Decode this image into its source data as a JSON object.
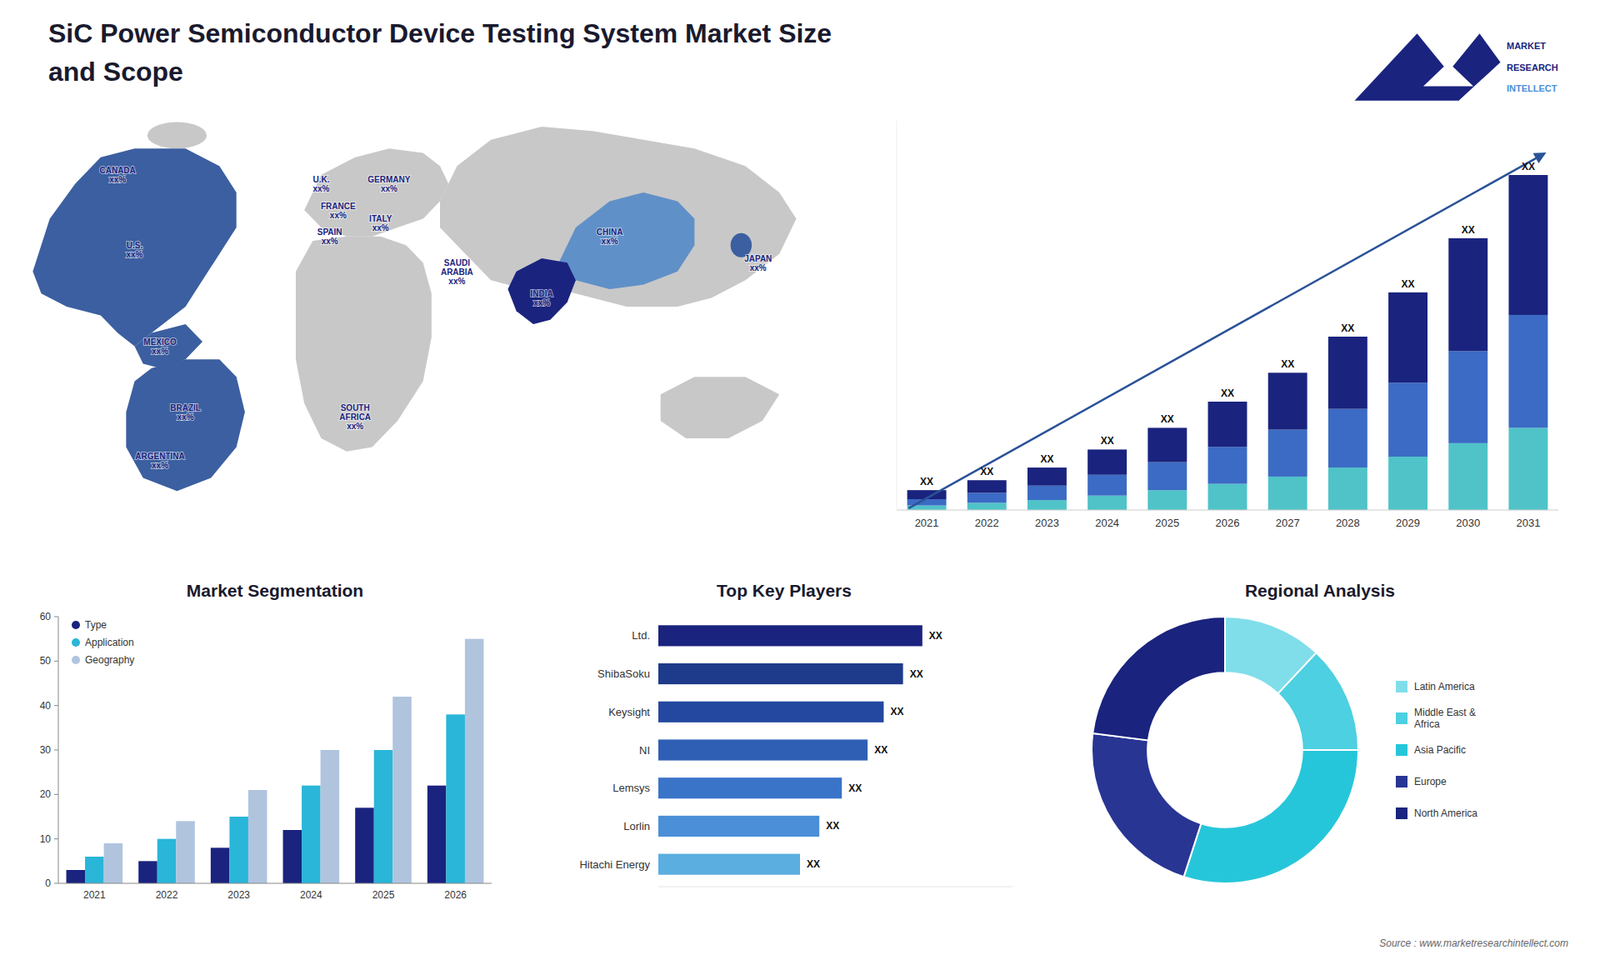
{
  "title": "SiC Power Semiconductor Device Testing System Market Size\nand Scope",
  "source": "Source : www.marketresearchintellect.com",
  "annotations": [
    "MARKET",
    "RESEARCH",
    "INTELLECT"
  ],
  "chart_data": [
    {
      "type": "map",
      "annotations": [
        "CANADA\nxx%",
        "U.S.\nxx%",
        "MEXICO\nxx%",
        "BRAZIL\nxx%",
        "ARGENTINA\nxx%",
        "U.K.\nxx%",
        "FRANCE\nxx%",
        "SPAIN\nxx%",
        "GERMANY\nxx%",
        "ITALY\nxx%",
        "SOUTH\nAFRICA\nxx%",
        "SAUDI\nARABIA\nxx%",
        "CHINA\nxx%",
        "INDIA\nxx%",
        "JAPAN\nxx%"
      ]
    },
    {
      "type": "bar",
      "stacked": true,
      "categories": [
        "2021",
        "2022",
        "2023",
        "2024",
        "2025",
        "2026",
        "2027",
        "2028",
        "2029",
        "2030",
        "2031"
      ],
      "series": [
        {
          "color": "#4fc3c8",
          "values": [
            0.5,
            0.8,
            1.1,
            1.6,
            2.2,
            2.9,
            3.7,
            4.7,
            5.9,
            7.4,
            9.1
          ]
        },
        {
          "color": "#3b6bc4",
          "values": [
            0.7,
            1.1,
            1.6,
            2.3,
            3.1,
            4.1,
            5.2,
            6.5,
            8.2,
            10.2,
            12.5
          ]
        },
        {
          "color": "#1a237e",
          "values": [
            1.0,
            1.4,
            2.0,
            2.8,
            3.8,
            5.0,
            6.3,
            8.0,
            10.0,
            12.5,
            15.5
          ]
        }
      ],
      "ylim": [
        0,
        43.1
      ],
      "tick_labels": "x",
      "grid": false,
      "annotations": [
        "XX",
        "XX",
        "XX",
        "XX",
        "XX",
        "XX",
        "XX",
        "XX",
        "XX",
        "XX",
        "XX"
      ]
    },
    {
      "type": "bar",
      "title": "Market Segmentation",
      "categories": [
        "2021",
        "2022",
        "2023",
        "2024",
        "2025",
        "2026"
      ],
      "series": [
        {
          "name": "Type",
          "color": "#1a237e",
          "values": [
            3,
            5,
            8,
            12,
            17,
            22
          ]
        },
        {
          "name": "Application",
          "color": "#29b6d8",
          "values": [
            6,
            10,
            15,
            22,
            30,
            38
          ]
        },
        {
          "name": "Geography",
          "color": "#b0c4de",
          "values": [
            9,
            14,
            21,
            30,
            42,
            55
          ]
        }
      ],
      "ylim": [
        0,
        60
      ],
      "yticks": [
        0,
        10,
        20,
        30,
        40,
        50,
        60
      ],
      "grid": false,
      "legend": "upper-left"
    },
    {
      "type": "bar",
      "orientation": "horizontal",
      "title": "Top Key Players",
      "categories": [
        "Ltd.",
        "ShibaSoku",
        "Keysight",
        "NI",
        "Lemsys",
        "Lorlin",
        "Hitachi Energy"
      ],
      "values": [
        0.82,
        0.76,
        0.7,
        0.65,
        0.57,
        0.5,
        0.44
      ],
      "colors": [
        "#1a237e",
        "#1e3a8a",
        "#2448a0",
        "#2e5fb5",
        "#3a74c8",
        "#4a8fd8",
        "#5aaee0"
      ],
      "xlim": [
        0,
        1.1
      ],
      "tick_labels": "y",
      "grid": false,
      "annotations": [
        "XX",
        "XX",
        "XX",
        "XX",
        "XX",
        "XX",
        "XX"
      ]
    },
    {
      "type": "donut",
      "title": "Regional Analysis",
      "categories": [
        "Latin America",
        "Middle East &\nAfrica",
        "Asia Pacific",
        "Europe",
        "North America"
      ],
      "values": [
        12,
        13,
        30,
        22,
        23
      ],
      "colors": [
        "#80deea",
        "#4dd0e1",
        "#26c6da",
        "#283593",
        "#1a237e"
      ],
      "legend": "right"
    }
  ]
}
